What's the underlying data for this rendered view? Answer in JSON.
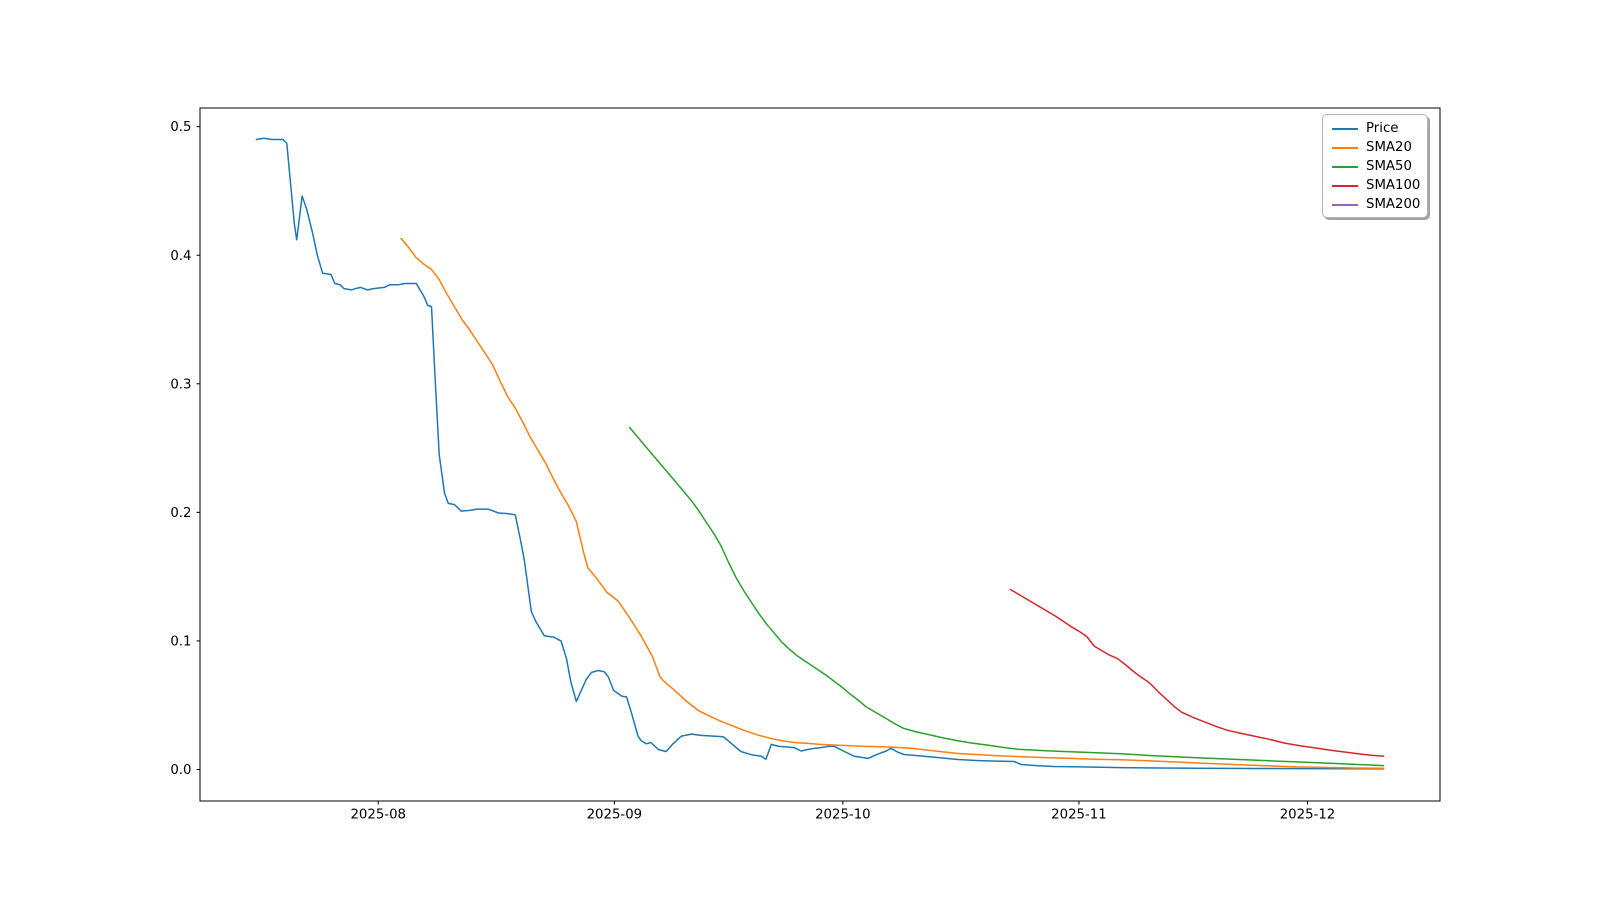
{
  "figure": {
    "background": "#ffffff",
    "axes_edge_color": "#000000",
    "tick_label_color": "#000000"
  },
  "chart_data": {
    "type": "line",
    "title": "",
    "xlabel": "",
    "ylabel": "",
    "grid": false,
    "legend_position": "upper right",
    "x_tick_labels": [
      "2025-08",
      "2025-09",
      "2025-10",
      "2025-11",
      "2025-12"
    ],
    "x_tick_days": [
      16,
      47,
      77,
      108,
      138
    ],
    "xlim_days": [
      -7.4,
      155.4
    ],
    "y_tick_labels": [
      "0.0",
      "0.1",
      "0.2",
      "0.3",
      "0.4",
      "0.5"
    ],
    "y_ticks": [
      0.0,
      0.1,
      0.2,
      0.3,
      0.4,
      0.5
    ],
    "ylim": [
      -0.0245,
      0.5145
    ],
    "series": [
      {
        "name": "Price",
        "color": "#1f77b4",
        "points": [
          [
            0,
            0.49
          ],
          [
            1,
            0.491
          ],
          [
            2,
            0.49
          ],
          [
            3,
            0.49
          ],
          [
            3.5,
            0.49
          ],
          [
            4,
            0.487
          ],
          [
            5,
            0.424
          ],
          [
            5.3,
            0.412
          ],
          [
            6,
            0.446
          ],
          [
            6.6,
            0.436
          ],
          [
            7.4,
            0.417
          ],
          [
            8,
            0.4
          ],
          [
            8.7,
            0.386
          ],
          [
            9.8,
            0.385
          ],
          [
            10.3,
            0.378
          ],
          [
            11,
            0.377
          ],
          [
            11.5,
            0.374
          ],
          [
            12.5,
            0.373
          ],
          [
            13,
            0.374
          ],
          [
            13.7,
            0.375
          ],
          [
            14.6,
            0.373
          ],
          [
            15.4,
            0.374
          ],
          [
            16.8,
            0.375
          ],
          [
            17.5,
            0.377
          ],
          [
            18.6,
            0.377
          ],
          [
            19.5,
            0.378
          ],
          [
            20.3,
            0.378
          ],
          [
            21,
            0.378
          ],
          [
            21.6,
            0.372
          ],
          [
            22,
            0.368
          ],
          [
            22.5,
            0.361
          ],
          [
            23,
            0.36
          ],
          [
            23.5,
            0.3
          ],
          [
            24,
            0.245
          ],
          [
            24.7,
            0.215
          ],
          [
            25.2,
            0.207
          ],
          [
            26,
            0.206
          ],
          [
            26.9,
            0.201
          ],
          [
            28,
            0.2015
          ],
          [
            29,
            0.2025
          ],
          [
            30.4,
            0.2025
          ],
          [
            31.8,
            0.1995
          ],
          [
            33,
            0.199
          ],
          [
            34,
            0.198
          ],
          [
            34.8,
            0.175
          ],
          [
            35.2,
            0.162
          ],
          [
            35.7,
            0.14
          ],
          [
            36.1,
            0.123
          ],
          [
            36.7,
            0.115
          ],
          [
            37.8,
            0.104
          ],
          [
            39,
            0.103
          ],
          [
            40,
            0.1
          ],
          [
            40.7,
            0.0865
          ],
          [
            41.3,
            0.068
          ],
          [
            42,
            0.053
          ],
          [
            42.7,
            0.062
          ],
          [
            43.3,
            0.07
          ],
          [
            44,
            0.0755
          ],
          [
            44.9,
            0.077
          ],
          [
            45.7,
            0.076
          ],
          [
            46.2,
            0.072
          ],
          [
            46.9,
            0.0615
          ],
          [
            47.5,
            0.059
          ],
          [
            48,
            0.057
          ],
          [
            48.6,
            0.0565
          ],
          [
            49.2,
            0.045
          ],
          [
            50.1,
            0.026
          ],
          [
            50.5,
            0.0225
          ],
          [
            51.2,
            0.02
          ],
          [
            51.8,
            0.021
          ],
          [
            52.8,
            0.0155
          ],
          [
            53.8,
            0.014
          ],
          [
            54.7,
            0.02
          ],
          [
            55.8,
            0.026
          ],
          [
            57.1,
            0.0275
          ],
          [
            58.4,
            0.0265
          ],
          [
            60,
            0.026
          ],
          [
            61.3,
            0.0255
          ],
          [
            62.6,
            0.019
          ],
          [
            63.6,
            0.014
          ],
          [
            65,
            0.0115
          ],
          [
            66.3,
            0.0103
          ],
          [
            66.9,
            0.008
          ],
          [
            67.6,
            0.0195
          ],
          [
            68.6,
            0.018
          ],
          [
            69.7,
            0.0175
          ],
          [
            70.6,
            0.017
          ],
          [
            71.5,
            0.0144
          ],
          [
            72.8,
            0.016
          ],
          [
            74.1,
            0.017
          ],
          [
            75.1,
            0.018
          ],
          [
            75.9,
            0.018
          ],
          [
            77.2,
            0.014
          ],
          [
            78.5,
            0.0103
          ],
          [
            80.3,
            0.0086
          ],
          [
            81.6,
            0.012
          ],
          [
            82.7,
            0.0144
          ],
          [
            83.3,
            0.0166
          ],
          [
            84.2,
            0.0135
          ],
          [
            85,
            0.0117
          ],
          [
            87.3,
            0.0105
          ],
          [
            89.9,
            0.009
          ],
          [
            92.1,
            0.0078
          ],
          [
            94.5,
            0.007
          ],
          [
            97.1,
            0.0065
          ],
          [
            99.5,
            0.0062
          ],
          [
            100.4,
            0.0039
          ],
          [
            102.4,
            0.003
          ],
          [
            104.7,
            0.0023
          ],
          [
            108.3,
            0.002
          ],
          [
            113.5,
            0.0015
          ],
          [
            118.8,
            0.0012
          ],
          [
            124,
            0.001
          ],
          [
            130.6,
            0.0008
          ],
          [
            137.1,
            0.0007
          ],
          [
            143.7,
            0.0006
          ],
          [
            148,
            0.0005
          ]
        ]
      },
      {
        "name": "SMA20",
        "color": "#ff7f0e",
        "points": [
          [
            19,
            0.413
          ],
          [
            20,
            0.406
          ],
          [
            21,
            0.398
          ],
          [
            22,
            0.393
          ],
          [
            23,
            0.389
          ],
          [
            24,
            0.381
          ],
          [
            25,
            0.37
          ],
          [
            26,
            0.36
          ],
          [
            27,
            0.35
          ],
          [
            28,
            0.342
          ],
          [
            29,
            0.333
          ],
          [
            30,
            0.324
          ],
          [
            31,
            0.315
          ],
          [
            32,
            0.302
          ],
          [
            33,
            0.29
          ],
          [
            34,
            0.281
          ],
          [
            35,
            0.27
          ],
          [
            36,
            0.258
          ],
          [
            37,
            0.248
          ],
          [
            38,
            0.238
          ],
          [
            39,
            0.226
          ],
          [
            40,
            0.215
          ],
          [
            41,
            0.205
          ],
          [
            42,
            0.193
          ],
          [
            43,
            0.168
          ],
          [
            43.5,
            0.157
          ],
          [
            44.5,
            0.15
          ],
          [
            46,
            0.138
          ],
          [
            47.5,
            0.131
          ],
          [
            49,
            0.118
          ],
          [
            50.5,
            0.104
          ],
          [
            52,
            0.088
          ],
          [
            53,
            0.072
          ],
          [
            53.5,
            0.0687
          ],
          [
            55,
            0.061
          ],
          [
            56.5,
            0.053
          ],
          [
            58,
            0.046
          ],
          [
            59.5,
            0.0415
          ],
          [
            61,
            0.0375
          ],
          [
            62.5,
            0.034
          ],
          [
            64,
            0.0305
          ],
          [
            66,
            0.0265
          ],
          [
            68,
            0.0235
          ],
          [
            70,
            0.0215
          ],
          [
            71,
            0.0208
          ],
          [
            72,
            0.0205
          ],
          [
            74,
            0.0195
          ],
          [
            76,
            0.019
          ],
          [
            78,
            0.0185
          ],
          [
            80,
            0.018
          ],
          [
            83,
            0.0175
          ],
          [
            86,
            0.0165
          ],
          [
            89,
            0.0145
          ],
          [
            92,
            0.0125
          ],
          [
            95,
            0.0115
          ],
          [
            98,
            0.0105
          ],
          [
            101,
            0.0098
          ],
          [
            104,
            0.0092
          ],
          [
            107,
            0.0086
          ],
          [
            110,
            0.008
          ],
          [
            113.5,
            0.0076
          ],
          [
            117,
            0.0068
          ],
          [
            120,
            0.006
          ],
          [
            124,
            0.005
          ],
          [
            128,
            0.004
          ],
          [
            132,
            0.003
          ],
          [
            136,
            0.0022
          ],
          [
            140,
            0.0016
          ],
          [
            144,
            0.0012
          ],
          [
            148,
            0.001
          ]
        ]
      },
      {
        "name": "SMA50",
        "color": "#2ca02c",
        "points": [
          [
            49,
            0.266
          ],
          [
            50,
            0.259
          ],
          [
            51,
            0.252
          ],
          [
            52,
            0.245
          ],
          [
            53,
            0.238
          ],
          [
            54,
            0.231
          ],
          [
            55,
            0.224
          ],
          [
            56,
            0.217
          ],
          [
            57,
            0.21
          ],
          [
            57.5,
            0.206
          ],
          [
            58,
            0.202
          ],
          [
            59,
            0.193
          ],
          [
            60,
            0.184
          ],
          [
            61,
            0.174
          ],
          [
            62,
            0.161
          ],
          [
            63,
            0.149
          ],
          [
            64,
            0.139
          ],
          [
            65,
            0.13
          ],
          [
            66,
            0.121
          ],
          [
            67,
            0.113
          ],
          [
            68,
            0.106
          ],
          [
            69,
            0.099
          ],
          [
            70,
            0.0935
          ],
          [
            71,
            0.0885
          ],
          [
            72,
            0.0845
          ],
          [
            73,
            0.0805
          ],
          [
            74,
            0.0765
          ],
          [
            75,
            0.0725
          ],
          [
            76,
            0.068
          ],
          [
            77,
            0.0635
          ],
          [
            78,
            0.0585
          ],
          [
            79,
            0.054
          ],
          [
            80,
            0.049
          ],
          [
            81,
            0.0455
          ],
          [
            82,
            0.042
          ],
          [
            83,
            0.0385
          ],
          [
            84,
            0.035
          ],
          [
            85,
            0.032
          ],
          [
            86.5,
            0.0295
          ],
          [
            88,
            0.0275
          ],
          [
            90,
            0.0248
          ],
          [
            92,
            0.0225
          ],
          [
            94,
            0.0205
          ],
          [
            96,
            0.019
          ],
          [
            98,
            0.0172
          ],
          [
            100,
            0.0158
          ],
          [
            103,
            0.0148
          ],
          [
            106,
            0.014
          ],
          [
            109,
            0.0133
          ],
          [
            113.5,
            0.0122
          ],
          [
            117.5,
            0.0108
          ],
          [
            121,
            0.0098
          ],
          [
            125,
            0.0088
          ],
          [
            129,
            0.0078
          ],
          [
            133,
            0.0068
          ],
          [
            137,
            0.0058
          ],
          [
            141,
            0.0048
          ],
          [
            145,
            0.0038
          ],
          [
            148,
            0.003
          ]
        ]
      },
      {
        "name": "SMA100",
        "color": "#d62728",
        "points": [
          [
            99,
            0.14
          ],
          [
            100,
            0.1365
          ],
          [
            101,
            0.133
          ],
          [
            102,
            0.1295
          ],
          [
            103,
            0.126
          ],
          [
            104,
            0.1225
          ],
          [
            105,
            0.119
          ],
          [
            106,
            0.115
          ],
          [
            107,
            0.111
          ],
          [
            108,
            0.1075
          ],
          [
            109,
            0.1035
          ],
          [
            110,
            0.096
          ],
          [
            111,
            0.0925
          ],
          [
            112,
            0.089
          ],
          [
            113,
            0.0865
          ],
          [
            114,
            0.082
          ],
          [
            115,
            0.077
          ],
          [
            116,
            0.0725
          ],
          [
            117,
            0.0685
          ],
          [
            117.5,
            0.066
          ],
          [
            118.5,
            0.06
          ],
          [
            119.5,
            0.0545
          ],
          [
            120.5,
            0.049
          ],
          [
            121.5,
            0.0445
          ],
          [
            123,
            0.0405
          ],
          [
            124.5,
            0.037
          ],
          [
            126,
            0.0335
          ],
          [
            127.5,
            0.0305
          ],
          [
            129,
            0.0285
          ],
          [
            131,
            0.026
          ],
          [
            133,
            0.0235
          ],
          [
            135,
            0.0205
          ],
          [
            137,
            0.0185
          ],
          [
            139,
            0.0168
          ],
          [
            141,
            0.015
          ],
          [
            143,
            0.0135
          ],
          [
            145,
            0.012
          ],
          [
            146.5,
            0.011
          ],
          [
            148,
            0.0104
          ]
        ]
      },
      {
        "name": "SMA200",
        "color": "#9467bd",
        "points": []
      }
    ]
  }
}
